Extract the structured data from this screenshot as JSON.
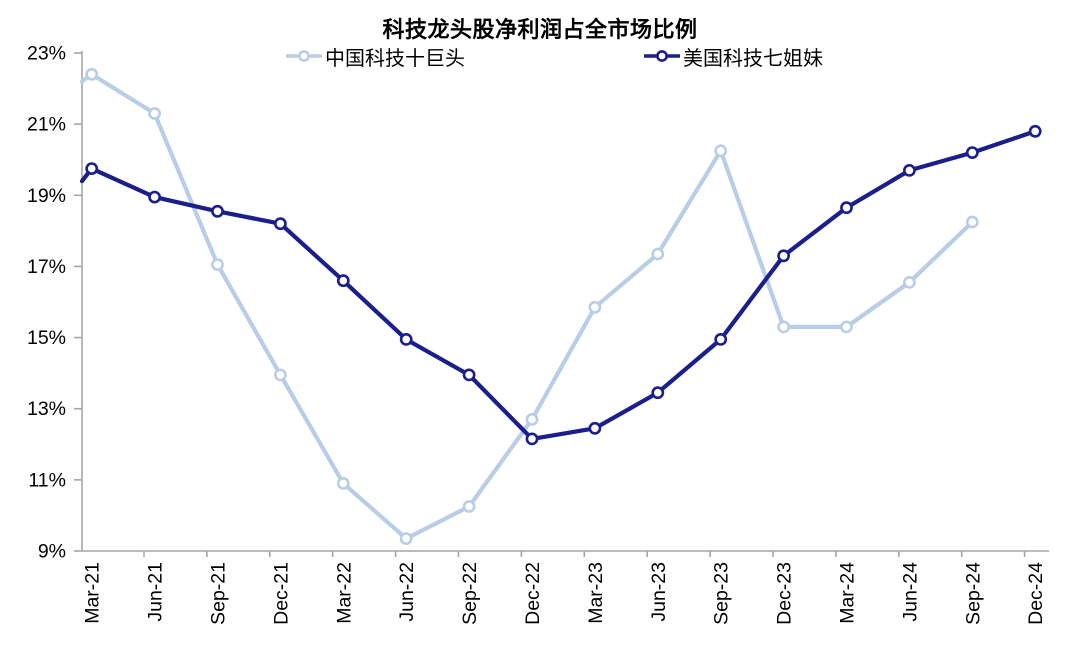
{
  "title": "科技龙头股净利润占全市场比例",
  "legend": [
    {
      "label": "中国科技十巨头",
      "color": "#B9CDE6"
    },
    {
      "label": "美国科技七姐妹",
      "color": "#1A1F8C"
    }
  ],
  "chart_data": {
    "type": "line",
    "title": "科技龙头股净利润占全市场比例",
    "categories": [
      "Mar-21",
      "Jun-21",
      "Sep-21",
      "Dec-21",
      "Mar-22",
      "Jun-22",
      "Sep-22",
      "Dec-22",
      "Mar-23",
      "Jun-23",
      "Sep-23",
      "Dec-23",
      "Mar-24",
      "Jun-24",
      "Sep-24",
      "Dec-24"
    ],
    "series": [
      {
        "name": "中国科技十巨头",
        "color": "#B9CDE6",
        "edge_start": 22.2,
        "values": [
          22.4,
          21.3,
          17.05,
          13.95,
          10.9,
          9.35,
          10.25,
          12.7,
          15.85,
          17.35,
          20.25,
          15.3,
          15.3,
          16.55,
          18.25,
          null
        ]
      },
      {
        "name": "美国科技七姐妹",
        "color": "#1A1F8C",
        "edge_start": 19.4,
        "values": [
          19.75,
          18.95,
          18.55,
          18.2,
          16.6,
          14.95,
          13.95,
          12.15,
          12.45,
          13.45,
          14.95,
          17.3,
          18.65,
          19.7,
          20.2,
          20.8
        ]
      }
    ],
    "y_ticks": [
      {
        "value": 23,
        "label": "23%"
      },
      {
        "value": 21,
        "label": "21%"
      },
      {
        "value": 19,
        "label": "19%"
      },
      {
        "value": 17,
        "label": "17%"
      },
      {
        "value": 15,
        "label": "15%"
      },
      {
        "value": 13,
        "label": "13%"
      },
      {
        "value": 11,
        "label": "11%"
      },
      {
        "value": 9,
        "label": "9%"
      }
    ],
    "ylim": [
      9,
      23
    ],
    "grid": false,
    "legend_position": "top",
    "axis_color": "#a6a6a6",
    "text_color": "#000000"
  }
}
